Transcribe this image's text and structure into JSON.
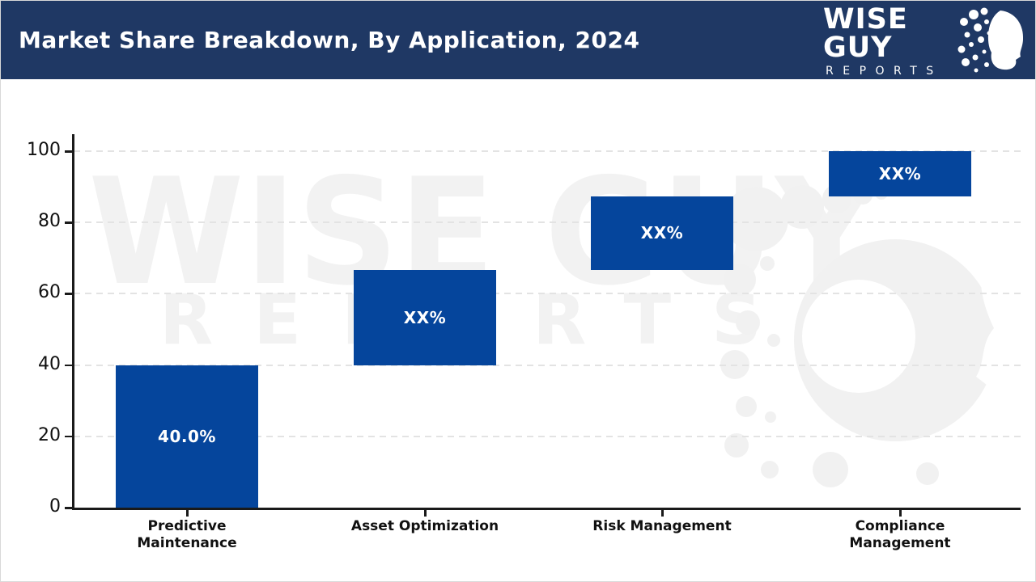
{
  "header": {
    "title": "Market Share Breakdown, By Application, 2024",
    "logo": {
      "line1": "WISE GUY",
      "line2": "REPORTS"
    }
  },
  "watermark": {
    "line1": "WISE GUY",
    "line2": "REPORTS"
  },
  "colors": {
    "header_bg": "#1f3864",
    "bar": "#05459c",
    "bar_label": "#ffffff",
    "grid": "#e3e3e3",
    "axis": "#1a1a1a",
    "watermark": "#f2f2f2"
  },
  "chart_data": {
    "type": "bar",
    "subtype": "floating-segment waterfall, single color",
    "title": "Market Share Breakdown, By Application, 2024",
    "categories": [
      {
        "lines": [
          "Predictive",
          "Maintenance"
        ]
      },
      {
        "lines": [
          "Asset Optimization"
        ]
      },
      {
        "lines": [
          "Risk Management"
        ]
      },
      {
        "lines": [
          "Compliance",
          "Management"
        ]
      }
    ],
    "segments": [
      {
        "category": "Predictive Maintenance",
        "start": 0,
        "end": 40,
        "label": "40.0%"
      },
      {
        "category": "Asset Optimization",
        "start": 40,
        "end": 66.7,
        "label": "XX%"
      },
      {
        "category": "Risk Management",
        "start": 66.7,
        "end": 87.3,
        "label": "XX%"
      },
      {
        "category": "Compliance Management",
        "start": 87.3,
        "end": 100,
        "label": "XX%"
      }
    ],
    "xlabel": "",
    "ylabel": "",
    "ylim": [
      0,
      100
    ],
    "yticks": [
      0,
      20,
      40,
      60,
      80,
      100
    ],
    "grid": "horizontal dashed",
    "legend": "none"
  }
}
